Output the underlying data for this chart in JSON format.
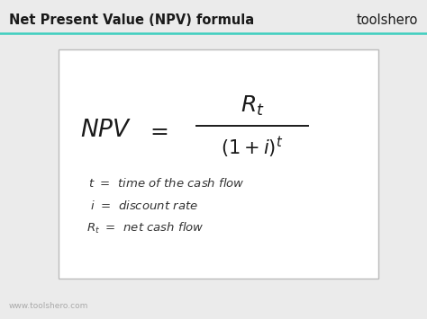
{
  "title": "Net Present Value (NPV) formula",
  "brand": "toolshero",
  "watermark": "www.toolshero.com",
  "bg_color": "#ebebeb",
  "box_color": "#ffffff",
  "title_color": "#1a1a1a",
  "brand_color": "#1a1a1a",
  "watermark_color": "#aaaaaa",
  "accent_line_color": "#3ecfbf",
  "formula_color": "#1a1a1a",
  "def_color": "#333333",
  "title_fontsize": 10.5,
  "brand_fontsize": 10.5,
  "watermark_fontsize": 6.5,
  "npv_fontsize": 19,
  "equals_fontsize": 18,
  "numerator_fontsize": 18,
  "denominator_fontsize": 15,
  "def_fontsize": 9.5
}
